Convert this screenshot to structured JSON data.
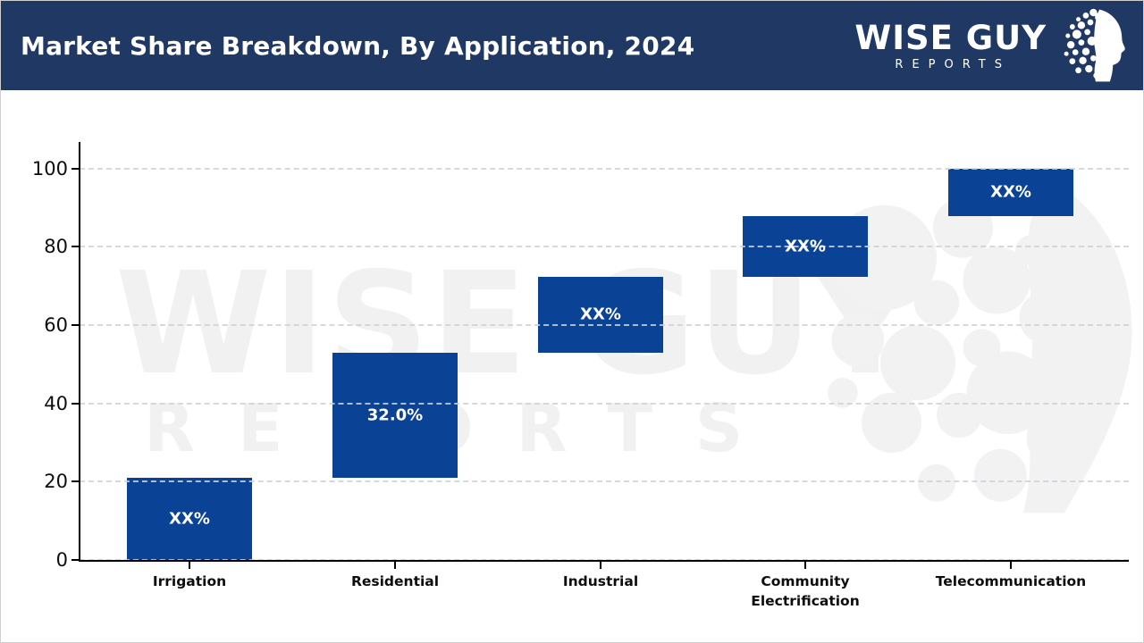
{
  "header": {
    "title": "Market Share Breakdown, By Application, 2024",
    "logo": {
      "primary": "WISE GUY",
      "secondary": "REPORTS"
    }
  },
  "watermark": {
    "primary": "WISE GUY",
    "secondary": "REPORTS"
  },
  "chart_data": {
    "type": "bar",
    "variant": "waterfall",
    "title": "Market Share Breakdown, By Application, 2024",
    "categories": [
      "Irrigation",
      "Residential",
      "Industrial",
      "Community Electrification",
      "Telecommunication"
    ],
    "category_label_lines": [
      [
        "Irrigation"
      ],
      [
        "Residential"
      ],
      [
        "Industrial"
      ],
      [
        "Community",
        "Electrification"
      ],
      [
        "Telecommunication"
      ]
    ],
    "segments": [
      {
        "category": "Irrigation",
        "start": 0,
        "end": 21,
        "label": "XX%"
      },
      {
        "category": "Residential",
        "start": 21,
        "end": 53,
        "label": "32.0%"
      },
      {
        "category": "Industrial",
        "start": 53,
        "end": 72.4,
        "label": "XX%"
      },
      {
        "category": "Community Electrification",
        "start": 72.4,
        "end": 87.9,
        "label": "XX%"
      },
      {
        "category": "Telecommunication",
        "start": 87.9,
        "end": 100,
        "label": "XX%"
      }
    ],
    "yticks": [
      0,
      20,
      40,
      60,
      80,
      100
    ],
    "ylim": [
      0,
      100
    ],
    "grid": {
      "horizontal": true,
      "style": "dashed"
    },
    "legend": null,
    "colors": {
      "bar": "#0a4296",
      "grid": "#d2d6da",
      "axis": "#000000",
      "header_bg": "#203864",
      "bar_label_text": "#ffffff"
    }
  }
}
